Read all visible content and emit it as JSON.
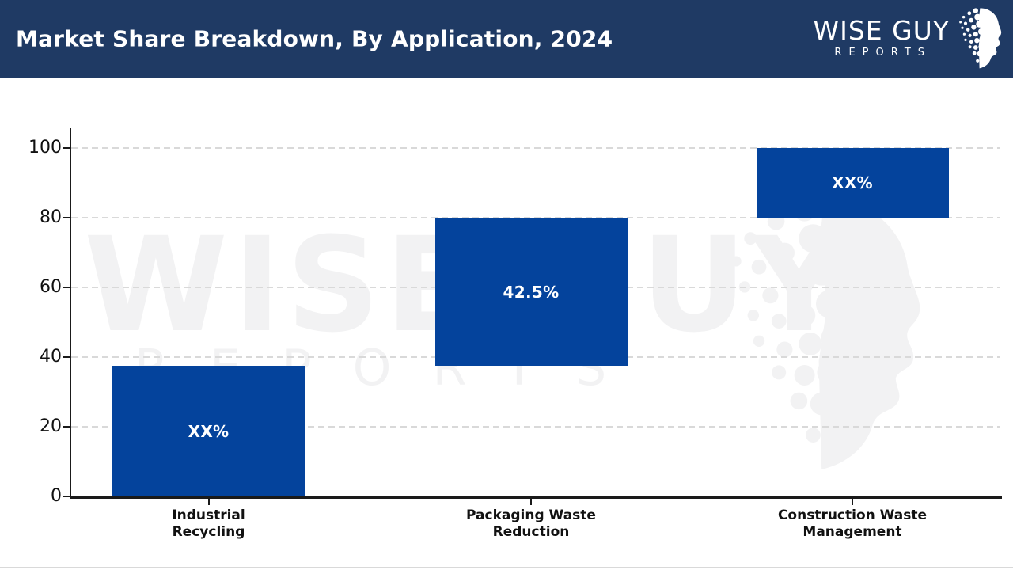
{
  "header": {
    "title": "Market Share Breakdown, By Application, 2024",
    "logo": {
      "line1": "WISE GUY",
      "line2": "REPORTS"
    }
  },
  "watermark": {
    "line1": "WISE GUY",
    "line2": "REPORTS"
  },
  "colors": {
    "header_bg": "#1f3a64",
    "bar": "#04439c",
    "grid": "#d9d9d9",
    "axis": "#1a1a1a",
    "bar_label": "#ffffff",
    "watermark": "#f2f2f3"
  },
  "chart_data": {
    "type": "bar",
    "subtype": "waterfall",
    "title": "Market Share Breakdown, By Application, 2024",
    "xlabel": "",
    "ylabel": "",
    "grid": "dashed-horizontal",
    "legend": "none",
    "ylim": [
      0,
      105
    ],
    "yticks": [
      0,
      20,
      40,
      60,
      80,
      100
    ],
    "categories": [
      "Industrial\nRecycling",
      "Packaging Waste\nReduction",
      "Construction Waste\nManagement"
    ],
    "series": [
      {
        "category": "Industrial Recycling",
        "start": 0,
        "end": 37.5,
        "label": "XX%"
      },
      {
        "category": "Packaging Waste Reduction",
        "start": 37.5,
        "end": 80,
        "label": "42.5%"
      },
      {
        "category": "Construction Waste Management",
        "start": 80,
        "end": 100,
        "label": "XX%"
      }
    ]
  }
}
